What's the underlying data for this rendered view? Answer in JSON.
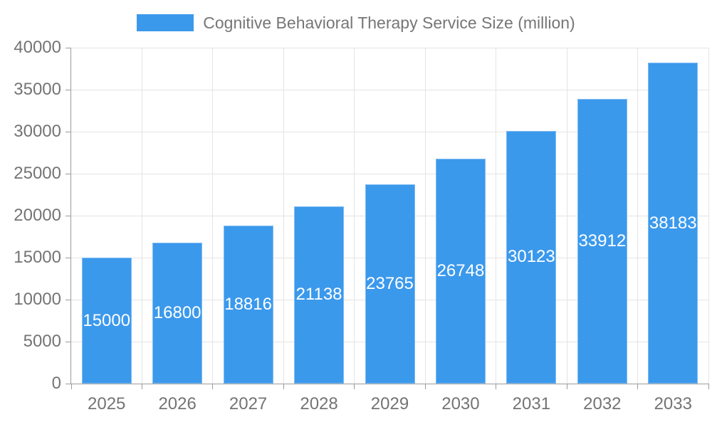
{
  "chart_data": {
    "type": "bar",
    "title": "Cognitive Behavioral Therapy Service Size (million)",
    "categories": [
      "2025",
      "2026",
      "2027",
      "2028",
      "2029",
      "2030",
      "2031",
      "2032",
      "2033"
    ],
    "values": [
      15000,
      16800,
      18816,
      21138,
      23765,
      26748,
      30123,
      33912,
      38183
    ],
    "value_labels": [
      "15000",
      "16800",
      "18816",
      "21138",
      "23765",
      "26748",
      "30123",
      "33912",
      "38183"
    ],
    "xlabel": "",
    "ylabel": "",
    "ylim": [
      0,
      40000
    ],
    "ytick_step": 5000,
    "ytick_labels": [
      "0",
      "5000",
      "10000",
      "15000",
      "20000",
      "25000",
      "30000",
      "35000",
      "40000"
    ],
    "grid": true,
    "legend_position": "top-center",
    "value_label_position": "inside-center",
    "colors": {
      "bar": "#3B99EC",
      "value_label": "#ffffff",
      "axis_text": "#747474",
      "legend_text": "#767676",
      "grid_line": "#e4e4e4",
      "axis_line": "#9b9b9b",
      "background": "#ffffff"
    }
  }
}
